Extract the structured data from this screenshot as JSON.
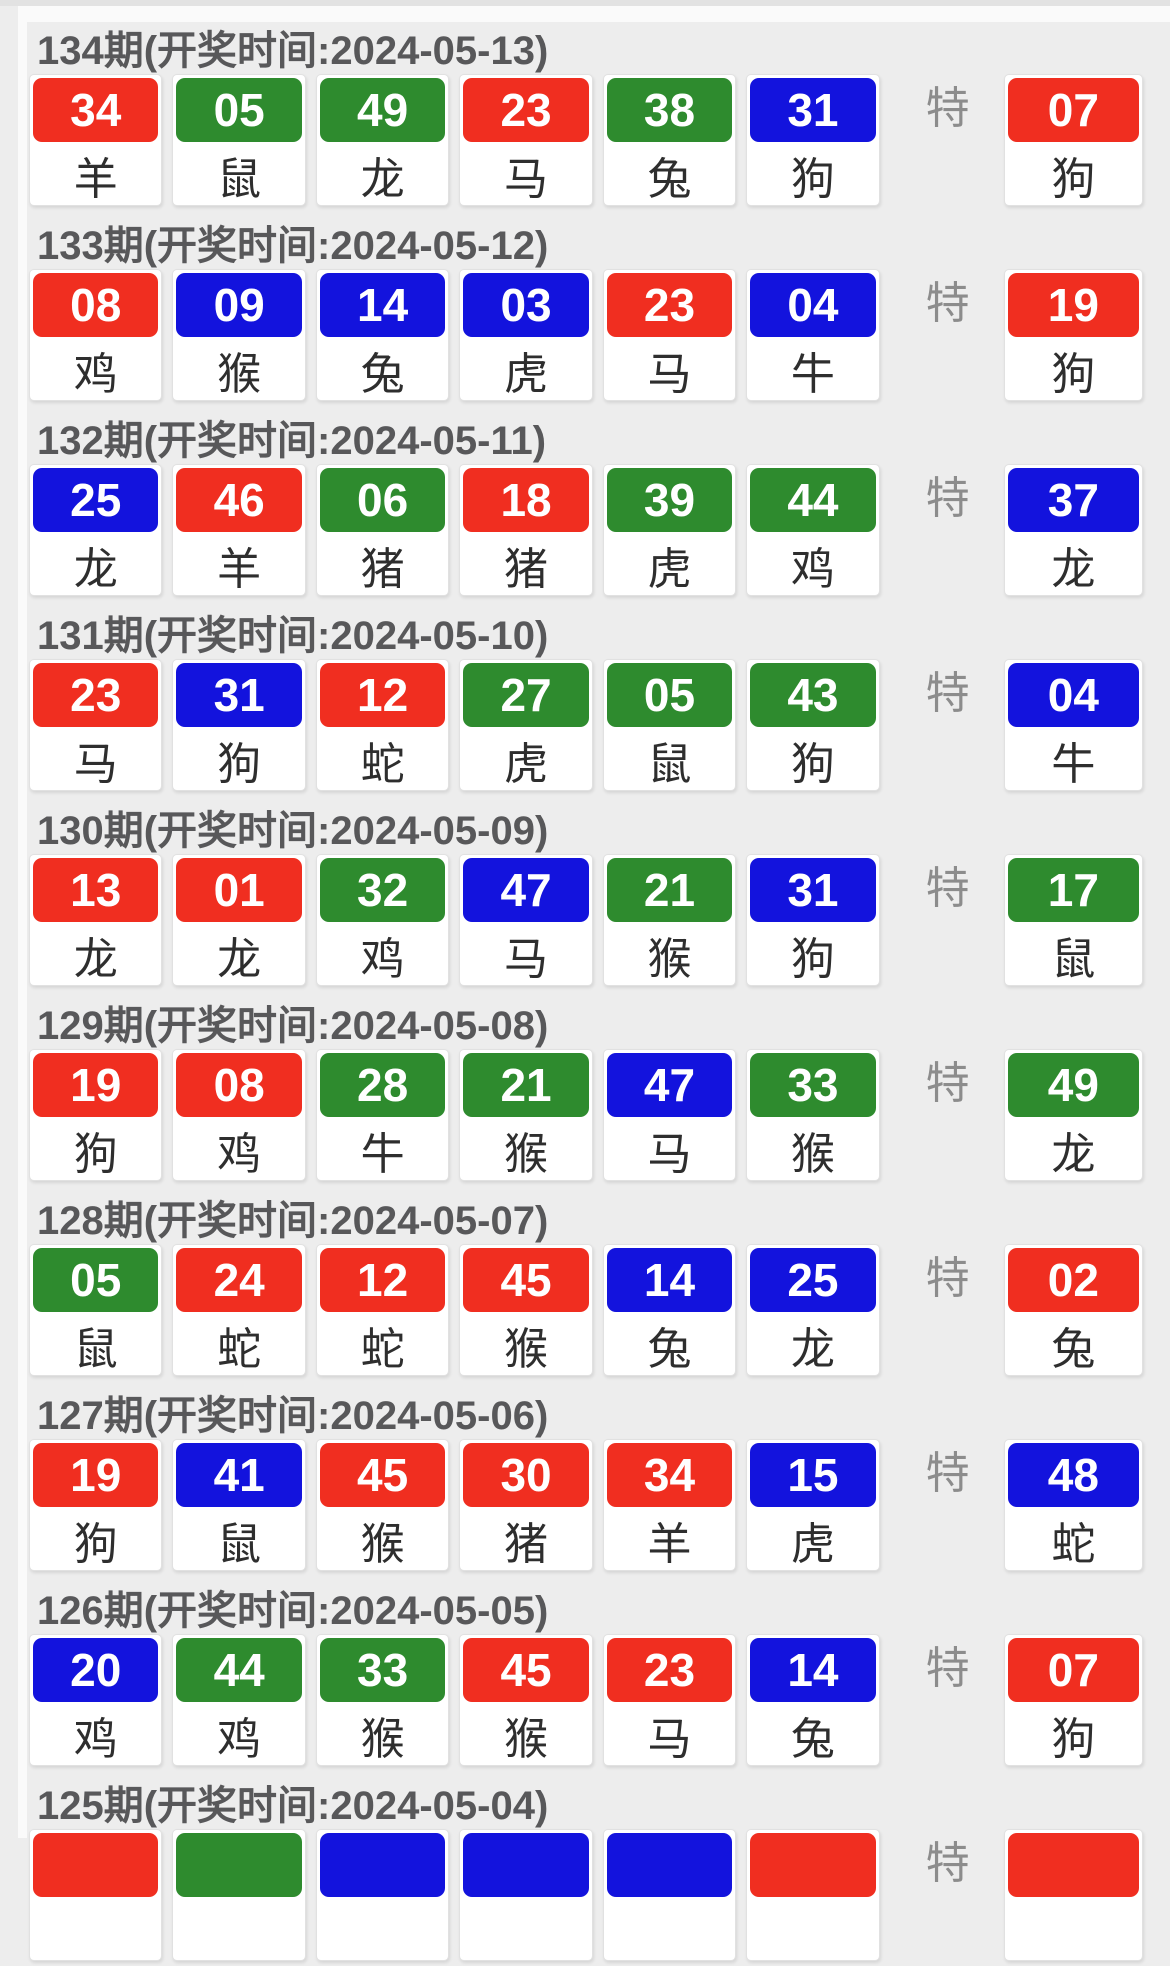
{
  "page": {
    "special_label": "特",
    "colors": {
      "red": "#f02e20",
      "green": "#2e8b2e",
      "blue": "#1313dd"
    }
  },
  "draws": [
    {
      "title": "134期(开奖时间:2024-05-13)",
      "balls": [
        {
          "num": "34",
          "color": "red",
          "zodiac": "羊"
        },
        {
          "num": "05",
          "color": "green",
          "zodiac": "鼠"
        },
        {
          "num": "49",
          "color": "green",
          "zodiac": "龙"
        },
        {
          "num": "23",
          "color": "red",
          "zodiac": "马"
        },
        {
          "num": "38",
          "color": "green",
          "zodiac": "兔"
        },
        {
          "num": "31",
          "color": "blue",
          "zodiac": "狗"
        }
      ],
      "special": {
        "num": "07",
        "color": "red",
        "zodiac": "狗"
      }
    },
    {
      "title": "133期(开奖时间:2024-05-12)",
      "balls": [
        {
          "num": "08",
          "color": "red",
          "zodiac": "鸡"
        },
        {
          "num": "09",
          "color": "blue",
          "zodiac": "猴"
        },
        {
          "num": "14",
          "color": "blue",
          "zodiac": "兔"
        },
        {
          "num": "03",
          "color": "blue",
          "zodiac": "虎"
        },
        {
          "num": "23",
          "color": "red",
          "zodiac": "马"
        },
        {
          "num": "04",
          "color": "blue",
          "zodiac": "牛"
        }
      ],
      "special": {
        "num": "19",
        "color": "red",
        "zodiac": "狗"
      }
    },
    {
      "title": "132期(开奖时间:2024-05-11)",
      "balls": [
        {
          "num": "25",
          "color": "blue",
          "zodiac": "龙"
        },
        {
          "num": "46",
          "color": "red",
          "zodiac": "羊"
        },
        {
          "num": "06",
          "color": "green",
          "zodiac": "猪"
        },
        {
          "num": "18",
          "color": "red",
          "zodiac": "猪"
        },
        {
          "num": "39",
          "color": "green",
          "zodiac": "虎"
        },
        {
          "num": "44",
          "color": "green",
          "zodiac": "鸡"
        }
      ],
      "special": {
        "num": "37",
        "color": "blue",
        "zodiac": "龙"
      }
    },
    {
      "title": "131期(开奖时间:2024-05-10)",
      "balls": [
        {
          "num": "23",
          "color": "red",
          "zodiac": "马"
        },
        {
          "num": "31",
          "color": "blue",
          "zodiac": "狗"
        },
        {
          "num": "12",
          "color": "red",
          "zodiac": "蛇"
        },
        {
          "num": "27",
          "color": "green",
          "zodiac": "虎"
        },
        {
          "num": "05",
          "color": "green",
          "zodiac": "鼠"
        },
        {
          "num": "43",
          "color": "green",
          "zodiac": "狗"
        }
      ],
      "special": {
        "num": "04",
        "color": "blue",
        "zodiac": "牛"
      }
    },
    {
      "title": "130期(开奖时间:2024-05-09)",
      "balls": [
        {
          "num": "13",
          "color": "red",
          "zodiac": "龙"
        },
        {
          "num": "01",
          "color": "red",
          "zodiac": "龙"
        },
        {
          "num": "32",
          "color": "green",
          "zodiac": "鸡"
        },
        {
          "num": "47",
          "color": "blue",
          "zodiac": "马"
        },
        {
          "num": "21",
          "color": "green",
          "zodiac": "猴"
        },
        {
          "num": "31",
          "color": "blue",
          "zodiac": "狗"
        }
      ],
      "special": {
        "num": "17",
        "color": "green",
        "zodiac": "鼠"
      }
    },
    {
      "title": "129期(开奖时间:2024-05-08)",
      "balls": [
        {
          "num": "19",
          "color": "red",
          "zodiac": "狗"
        },
        {
          "num": "08",
          "color": "red",
          "zodiac": "鸡"
        },
        {
          "num": "28",
          "color": "green",
          "zodiac": "牛"
        },
        {
          "num": "21",
          "color": "green",
          "zodiac": "猴"
        },
        {
          "num": "47",
          "color": "blue",
          "zodiac": "马"
        },
        {
          "num": "33",
          "color": "green",
          "zodiac": "猴"
        }
      ],
      "special": {
        "num": "49",
        "color": "green",
        "zodiac": "龙"
      }
    },
    {
      "title": "128期(开奖时间:2024-05-07)",
      "balls": [
        {
          "num": "05",
          "color": "green",
          "zodiac": "鼠"
        },
        {
          "num": "24",
          "color": "red",
          "zodiac": "蛇"
        },
        {
          "num": "12",
          "color": "red",
          "zodiac": "蛇"
        },
        {
          "num": "45",
          "color": "red",
          "zodiac": "猴"
        },
        {
          "num": "14",
          "color": "blue",
          "zodiac": "兔"
        },
        {
          "num": "25",
          "color": "blue",
          "zodiac": "龙"
        }
      ],
      "special": {
        "num": "02",
        "color": "red",
        "zodiac": "兔"
      }
    },
    {
      "title": "127期(开奖时间:2024-05-06)",
      "balls": [
        {
          "num": "19",
          "color": "red",
          "zodiac": "狗"
        },
        {
          "num": "41",
          "color": "blue",
          "zodiac": "鼠"
        },
        {
          "num": "45",
          "color": "red",
          "zodiac": "猴"
        },
        {
          "num": "30",
          "color": "red",
          "zodiac": "猪"
        },
        {
          "num": "34",
          "color": "red",
          "zodiac": "羊"
        },
        {
          "num": "15",
          "color": "blue",
          "zodiac": "虎"
        }
      ],
      "special": {
        "num": "48",
        "color": "blue",
        "zodiac": "蛇"
      }
    },
    {
      "title": "126期(开奖时间:2024-05-05)",
      "balls": [
        {
          "num": "20",
          "color": "blue",
          "zodiac": "鸡"
        },
        {
          "num": "44",
          "color": "green",
          "zodiac": "鸡"
        },
        {
          "num": "33",
          "color": "green",
          "zodiac": "猴"
        },
        {
          "num": "45",
          "color": "red",
          "zodiac": "猴"
        },
        {
          "num": "23",
          "color": "red",
          "zodiac": "马"
        },
        {
          "num": "14",
          "color": "blue",
          "zodiac": "兔"
        }
      ],
      "special": {
        "num": "07",
        "color": "red",
        "zodiac": "狗"
      }
    },
    {
      "title": "125期(开奖时间:2024-05-04)",
      "partial": true,
      "balls": [
        {
          "num": "",
          "color": "red",
          "zodiac": ""
        },
        {
          "num": "",
          "color": "green",
          "zodiac": ""
        },
        {
          "num": "",
          "color": "blue",
          "zodiac": ""
        },
        {
          "num": "",
          "color": "blue",
          "zodiac": ""
        },
        {
          "num": "",
          "color": "blue",
          "zodiac": ""
        },
        {
          "num": "",
          "color": "red",
          "zodiac": ""
        }
      ],
      "special": {
        "num": "",
        "color": "red",
        "zodiac": ""
      }
    }
  ]
}
